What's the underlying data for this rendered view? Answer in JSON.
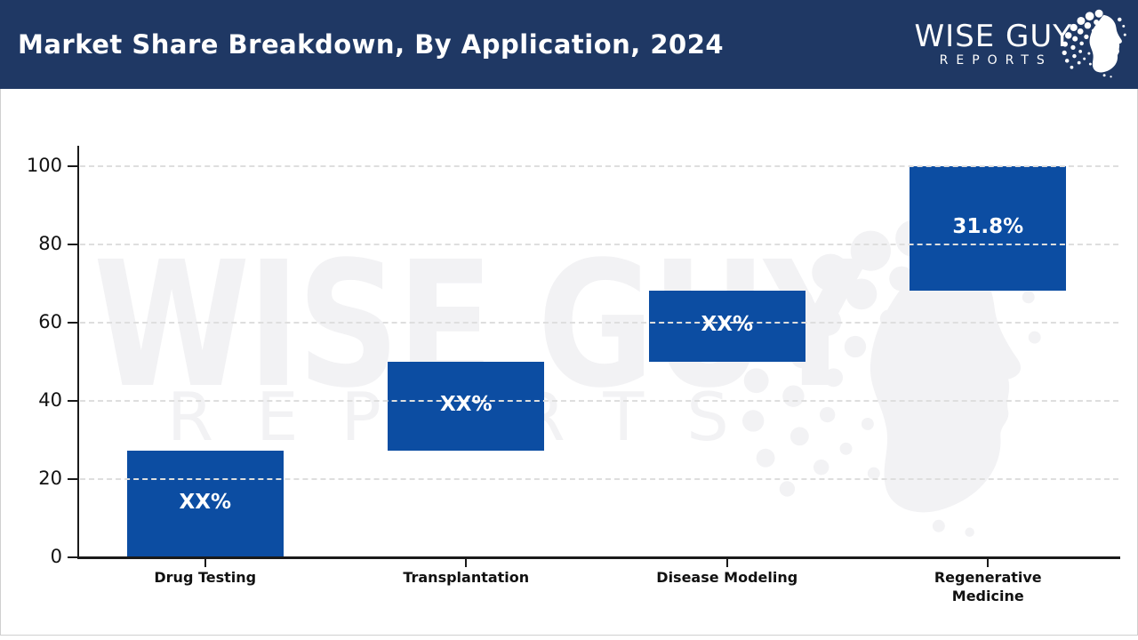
{
  "header": {
    "title": "Market Share Breakdown, By Application, 2024",
    "logo": {
      "line1": "WISE GUY",
      "line2": "REPORTS"
    }
  },
  "watermark": {
    "line1": "WISE GUY",
    "line2": "REPORTS"
  },
  "colors": {
    "header_bg": "#1f3864",
    "bar": "#0c4da2",
    "grid": "#dedede",
    "watermark": "#f2f2f4",
    "axis": "#1a1a1a"
  },
  "chart_data": {
    "type": "bar",
    "subtype": "waterfall",
    "title": "Market Share Breakdown, By Application, 2024",
    "categories": [
      "Drug Testing",
      "Transplantation",
      "Disease Modeling",
      "Regenerative Medicine"
    ],
    "series": [
      {
        "name": "Market Share",
        "segments": [
          {
            "category": "Drug Testing",
            "label": "XX%",
            "start": 0,
            "end": 27.3
          },
          {
            "category": "Transplantation",
            "label": "XX%",
            "start": 27.3,
            "end": 50.0
          },
          {
            "category": "Disease Modeling",
            "label": "XX%",
            "start": 50.0,
            "end": 68.2
          },
          {
            "category": "Regenerative Medicine",
            "label": "31.8%",
            "start": 68.2,
            "end": 100.0
          }
        ]
      }
    ],
    "y_ticks": [
      0,
      20,
      40,
      60,
      80,
      100
    ],
    "ylim": [
      0,
      105
    ],
    "xlabel": "",
    "ylabel": "",
    "legend": "none",
    "grid": "horizontal-dashed",
    "bar_color": "#0c4da2",
    "value_label_color": "#ffffff"
  }
}
